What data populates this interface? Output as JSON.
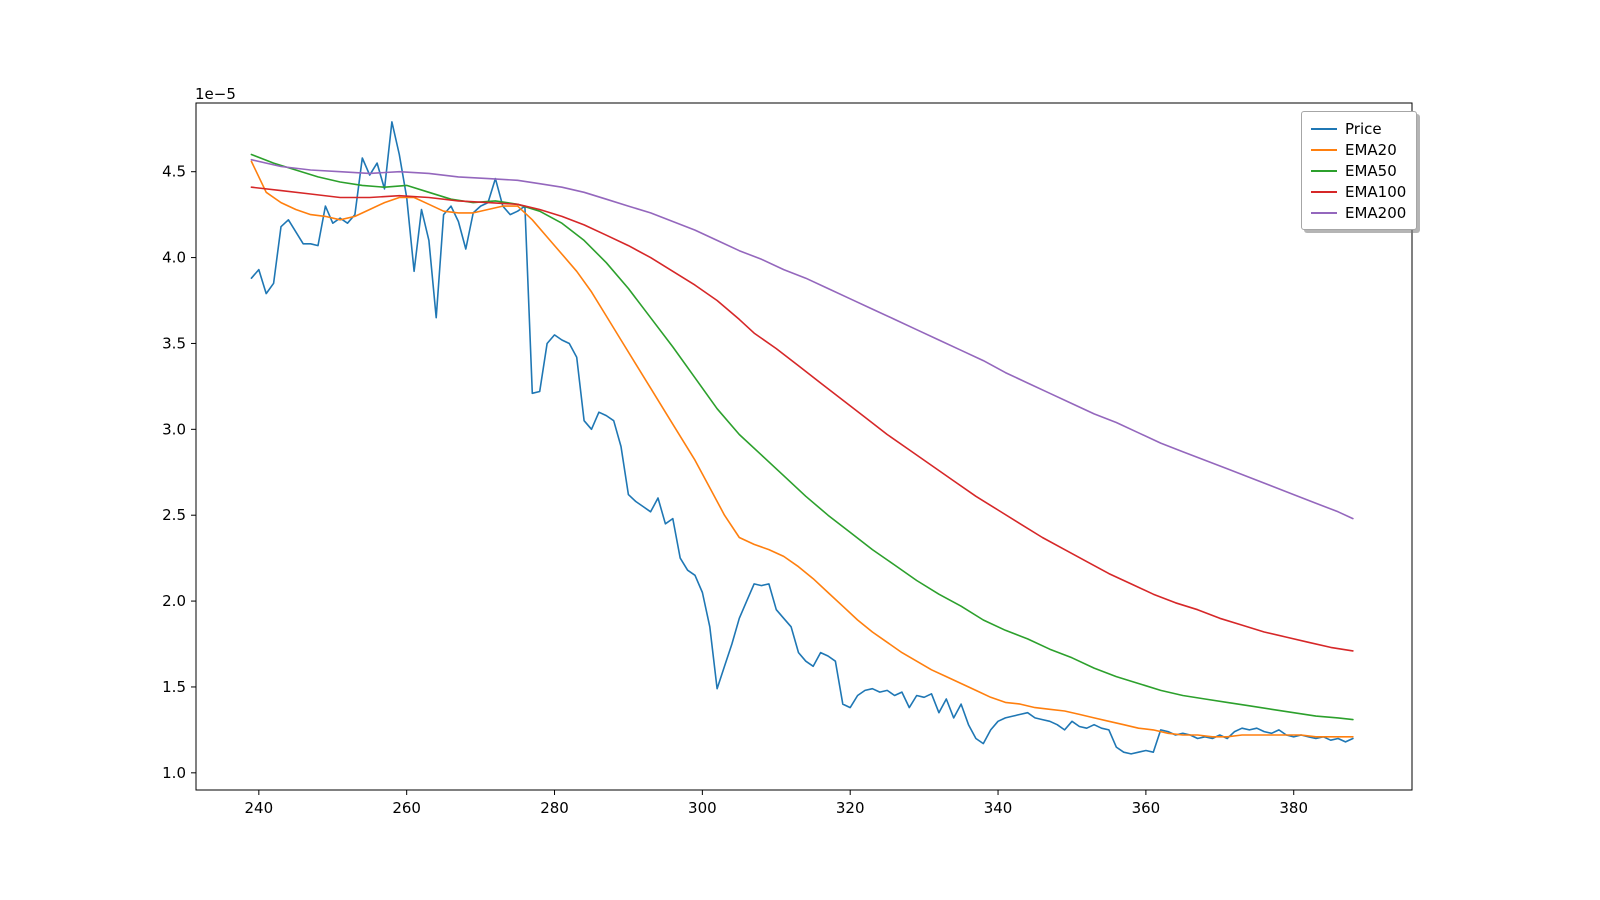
{
  "chart_data": {
    "type": "line",
    "title": "",
    "offset_label": "1e−5",
    "xlim": [
      231.5,
      396
    ],
    "ylim": [
      0.9,
      4.9
    ],
    "x_ticks": [
      240,
      260,
      280,
      300,
      320,
      340,
      360,
      380
    ],
    "y_ticks": [
      1.0,
      1.5,
      2.0,
      2.5,
      3.0,
      3.5,
      4.0,
      4.5
    ],
    "y_tick_labels": [
      "1.0",
      "1.5",
      "2.0",
      "2.5",
      "3.0",
      "3.5",
      "4.0",
      "4.5"
    ],
    "legend_position": "upper right",
    "grid": false,
    "legend": [
      "Price",
      "EMA20",
      "EMA50",
      "EMA100",
      "EMA200"
    ],
    "series": [
      {
        "name": "Price",
        "color": "#1f77b4",
        "x0": 239,
        "y": [
          3.88,
          3.93,
          3.79,
          3.85,
          4.18,
          4.22,
          4.15,
          4.08,
          4.08,
          4.07,
          4.3,
          4.2,
          4.23,
          4.2,
          4.25,
          4.58,
          4.48,
          4.55,
          4.4,
          4.79,
          4.6,
          4.35,
          3.92,
          4.28,
          4.1,
          3.65,
          4.25,
          4.3,
          4.21,
          4.05,
          4.26,
          4.3,
          4.32,
          4.46,
          4.3,
          4.25,
          4.27,
          4.3,
          3.21,
          3.22,
          3.5,
          3.55,
          3.52,
          3.5,
          3.42,
          3.05,
          3.0,
          3.1,
          3.08,
          3.05,
          2.9,
          2.62,
          2.58,
          2.55,
          2.52,
          2.6,
          2.45,
          2.48,
          2.25,
          2.18,
          2.15,
          2.05,
          1.85,
          1.49,
          1.62,
          1.75,
          1.9,
          2.0,
          2.1,
          2.09,
          2.1,
          1.95,
          1.9,
          1.85,
          1.7,
          1.65,
          1.62,
          1.7,
          1.68,
          1.65,
          1.4,
          1.38,
          1.45,
          1.48,
          1.49,
          1.47,
          1.48,
          1.45,
          1.47,
          1.38,
          1.45,
          1.44,
          1.46,
          1.35,
          1.43,
          1.32,
          1.4,
          1.28,
          1.2,
          1.17,
          1.25,
          1.3,
          1.32,
          1.33,
          1.34,
          1.35,
          1.32,
          1.31,
          1.3,
          1.28,
          1.25,
          1.3,
          1.27,
          1.26,
          1.28,
          1.26,
          1.25,
          1.15,
          1.12,
          1.11,
          1.12,
          1.13,
          1.12,
          1.25,
          1.24,
          1.22,
          1.23,
          1.22,
          1.2,
          1.21,
          1.2,
          1.22,
          1.2,
          1.24,
          1.26,
          1.25,
          1.26,
          1.24,
          1.23,
          1.25,
          1.22,
          1.21,
          1.22,
          1.21,
          1.2,
          1.21,
          1.19,
          1.2,
          1.18,
          1.2
        ]
      },
      {
        "name": "EMA20",
        "color": "#ff7f0e",
        "x": [
          239,
          241,
          243,
          245,
          247,
          249,
          251,
          253,
          255,
          257,
          259,
          261,
          263,
          265,
          267,
          269,
          271,
          273,
          275,
          277,
          279,
          281,
          283,
          285,
          287,
          289,
          291,
          293,
          295,
          297,
          299,
          301,
          303,
          305,
          307,
          309,
          311,
          313,
          315,
          317,
          319,
          321,
          323,
          325,
          327,
          329,
          331,
          333,
          335,
          337,
          339,
          341,
          343,
          345,
          347,
          349,
          351,
          353,
          355,
          357,
          359,
          361,
          363,
          365,
          367,
          369,
          371,
          373,
          375,
          377,
          379,
          381,
          383,
          385,
          388
        ],
        "y": [
          4.56,
          4.38,
          4.32,
          4.28,
          4.25,
          4.24,
          4.22,
          4.24,
          4.28,
          4.32,
          4.35,
          4.35,
          4.31,
          4.27,
          4.26,
          4.26,
          4.28,
          4.3,
          4.3,
          4.22,
          4.12,
          4.02,
          3.92,
          3.8,
          3.66,
          3.52,
          3.38,
          3.24,
          3.1,
          2.96,
          2.82,
          2.66,
          2.5,
          2.37,
          2.33,
          2.3,
          2.26,
          2.2,
          2.13,
          2.05,
          1.97,
          1.89,
          1.82,
          1.76,
          1.7,
          1.65,
          1.6,
          1.56,
          1.52,
          1.48,
          1.44,
          1.41,
          1.4,
          1.38,
          1.37,
          1.36,
          1.34,
          1.32,
          1.3,
          1.28,
          1.26,
          1.25,
          1.23,
          1.22,
          1.22,
          1.21,
          1.21,
          1.22,
          1.22,
          1.22,
          1.22,
          1.22,
          1.21,
          1.21,
          1.21
        ]
      },
      {
        "name": "EMA50",
        "color": "#2ca02c",
        "x": [
          239,
          242,
          245,
          248,
          251,
          254,
          257,
          260,
          263,
          266,
          269,
          272,
          275,
          278,
          281,
          284,
          287,
          290,
          293,
          296,
          299,
          302,
          305,
          308,
          311,
          314,
          317,
          320,
          323,
          326,
          329,
          332,
          335,
          338,
          341,
          344,
          347,
          350,
          353,
          356,
          359,
          362,
          365,
          368,
          371,
          374,
          377,
          380,
          383,
          386,
          388
        ],
        "y": [
          4.6,
          4.55,
          4.51,
          4.47,
          4.44,
          4.42,
          4.41,
          4.42,
          4.38,
          4.34,
          4.32,
          4.33,
          4.31,
          4.27,
          4.2,
          4.1,
          3.97,
          3.82,
          3.65,
          3.48,
          3.3,
          3.12,
          2.97,
          2.85,
          2.73,
          2.61,
          2.5,
          2.4,
          2.3,
          2.21,
          2.12,
          2.04,
          1.97,
          1.89,
          1.83,
          1.78,
          1.72,
          1.67,
          1.61,
          1.56,
          1.52,
          1.48,
          1.45,
          1.43,
          1.41,
          1.39,
          1.37,
          1.35,
          1.33,
          1.32,
          1.31
        ]
      },
      {
        "name": "EMA100",
        "color": "#d62728",
        "x": [
          239,
          243,
          247,
          251,
          255,
          259,
          263,
          267,
          271,
          275,
          278,
          281,
          284,
          287,
          290,
          293,
          296,
          299,
          302,
          305,
          307,
          310,
          313,
          316,
          319,
          322,
          325,
          328,
          331,
          334,
          337,
          340,
          343,
          346,
          349,
          352,
          355,
          358,
          361,
          364,
          367,
          370,
          373,
          376,
          379,
          382,
          385,
          388
        ],
        "y": [
          4.41,
          4.39,
          4.37,
          4.35,
          4.35,
          4.36,
          4.35,
          4.33,
          4.32,
          4.31,
          4.28,
          4.24,
          4.19,
          4.13,
          4.07,
          4.0,
          3.92,
          3.84,
          3.75,
          3.64,
          3.56,
          3.47,
          3.37,
          3.27,
          3.17,
          3.07,
          2.97,
          2.88,
          2.79,
          2.7,
          2.61,
          2.53,
          2.45,
          2.37,
          2.3,
          2.23,
          2.16,
          2.1,
          2.04,
          1.99,
          1.95,
          1.9,
          1.86,
          1.82,
          1.79,
          1.76,
          1.73,
          1.71
        ]
      },
      {
        "name": "EMA200",
        "color": "#9467bd",
        "x": [
          239,
          243,
          247,
          251,
          255,
          259,
          263,
          267,
          271,
          275,
          278,
          281,
          284,
          287,
          290,
          293,
          296,
          299,
          302,
          305,
          308,
          311,
          314,
          317,
          320,
          323,
          326,
          329,
          332,
          335,
          338,
          341,
          344,
          347,
          350,
          353,
          356,
          359,
          362,
          365,
          368,
          371,
          374,
          377,
          380,
          383,
          386,
          388
        ],
        "y": [
          4.57,
          4.53,
          4.51,
          4.5,
          4.49,
          4.5,
          4.49,
          4.47,
          4.46,
          4.45,
          4.43,
          4.41,
          4.38,
          4.34,
          4.3,
          4.26,
          4.21,
          4.16,
          4.1,
          4.04,
          3.99,
          3.93,
          3.88,
          3.82,
          3.76,
          3.7,
          3.64,
          3.58,
          3.52,
          3.46,
          3.4,
          3.33,
          3.27,
          3.21,
          3.15,
          3.09,
          3.04,
          2.98,
          2.92,
          2.87,
          2.82,
          2.77,
          2.72,
          2.67,
          2.62,
          2.57,
          2.52,
          2.48
        ]
      }
    ]
  }
}
